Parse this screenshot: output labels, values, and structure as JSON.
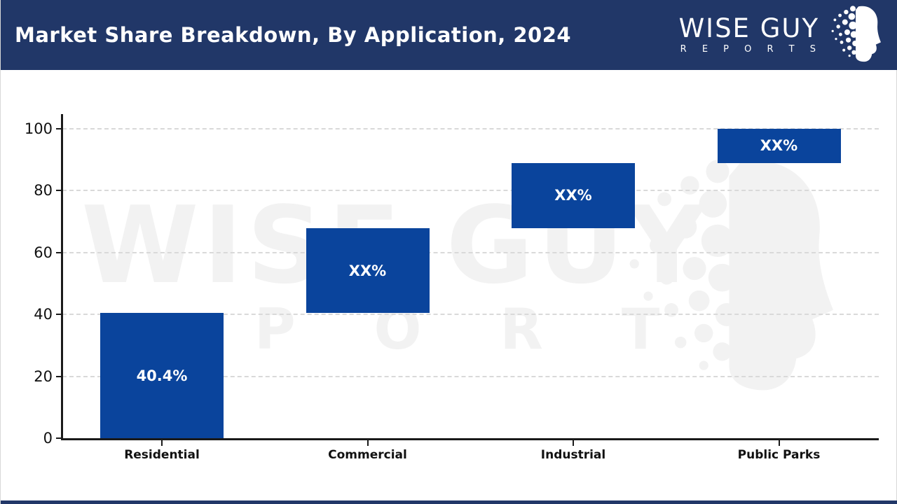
{
  "header": {
    "title": "Market Share Breakdown, By Application, 2024",
    "logo": {
      "line1": "WISE GUY",
      "line2": "R E P O R T S"
    }
  },
  "watermark": {
    "line1": "WISE GUY",
    "line2": "P O R T S"
  },
  "colors": {
    "header_bg": "#213768",
    "bar": "#0a449c",
    "gridline": "#d9d9d9",
    "axis": "#1a1a1a",
    "bar_label": "#ffffff",
    "watermark": "#f2f2f2"
  },
  "chart_data": {
    "type": "bar",
    "subtype": "waterfall",
    "title": "Market Share Breakdown, By Application, 2024",
    "categories": [
      "Residential",
      "Commercial",
      "Industrial",
      "Public Parks"
    ],
    "segments": [
      {
        "category": "Residential",
        "start": 0,
        "end": 40.4,
        "label": "40.4%"
      },
      {
        "category": "Commercial",
        "start": 40.4,
        "end": 67.8,
        "label": "XX%"
      },
      {
        "category": "Industrial",
        "start": 67.8,
        "end": 89.0,
        "label": "XX%"
      },
      {
        "category": "Public Parks",
        "start": 89.0,
        "end": 100.0,
        "label": "XX%"
      }
    ],
    "xlabel": "",
    "ylabel": "",
    "ylim": [
      0,
      100
    ],
    "yticks": [
      0,
      20,
      40,
      60,
      80,
      100
    ],
    "grid": "horizontal-dashed",
    "legend": null
  }
}
